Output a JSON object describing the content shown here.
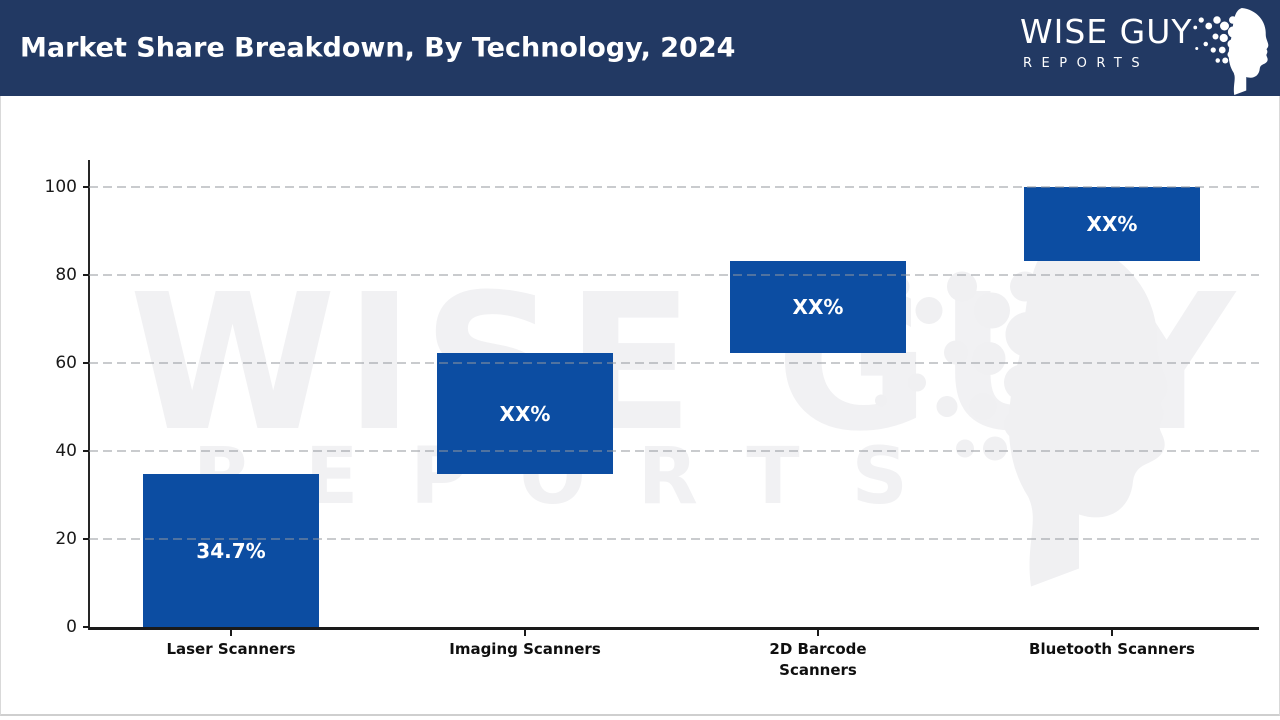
{
  "header": {
    "title": "Market Share Breakdown, By Technology, 2024",
    "bg_color": "#223963",
    "logo": {
      "line1": "WISE GUY",
      "line2": "REPORTS"
    }
  },
  "watermark": {
    "line1": "WISE GUY",
    "line2": "REPORTS"
  },
  "chart_data": {
    "type": "bar",
    "subtype": "waterfall",
    "title": "Market Share Breakdown, By Technology, 2024",
    "categories": [
      "Laser Scanners",
      "Imaging Scanners",
      "2D Barcode Scanners",
      "Bluetooth Scanners"
    ],
    "segments": [
      {
        "category": "Laser Scanners",
        "category_lines": [
          "Laser Scanners"
        ],
        "start": 0,
        "end": 34.7,
        "size": 34.7,
        "label": "34.7%"
      },
      {
        "category": "Imaging Scanners",
        "category_lines": [
          "Imaging Scanners"
        ],
        "start": 34.7,
        "end": 62.3,
        "size": 27.6,
        "label": "XX%"
      },
      {
        "category": "2D Barcode Scanners",
        "category_lines": [
          "2D Barcode",
          "Scanners"
        ],
        "start": 62.3,
        "end": 83.2,
        "size": 20.9,
        "label": "XX%"
      },
      {
        "category": "Bluetooth Scanners",
        "category_lines": [
          "Bluetooth Scanners"
        ],
        "start": 83.2,
        "end": 100,
        "size": 16.8,
        "label": "XX%"
      }
    ],
    "xlabel": "",
    "ylabel": "",
    "ylim": [
      0,
      100
    ],
    "yticks": [
      0,
      20,
      40,
      60,
      80,
      100
    ],
    "grid": "horizontal dashed, drawn over bars",
    "legend": "none",
    "bar_color": "#0c4da2",
    "bar_label_color": "#ffffff",
    "grid_color": "#d9d9d9",
    "axis_color": "#1a1a1a"
  }
}
